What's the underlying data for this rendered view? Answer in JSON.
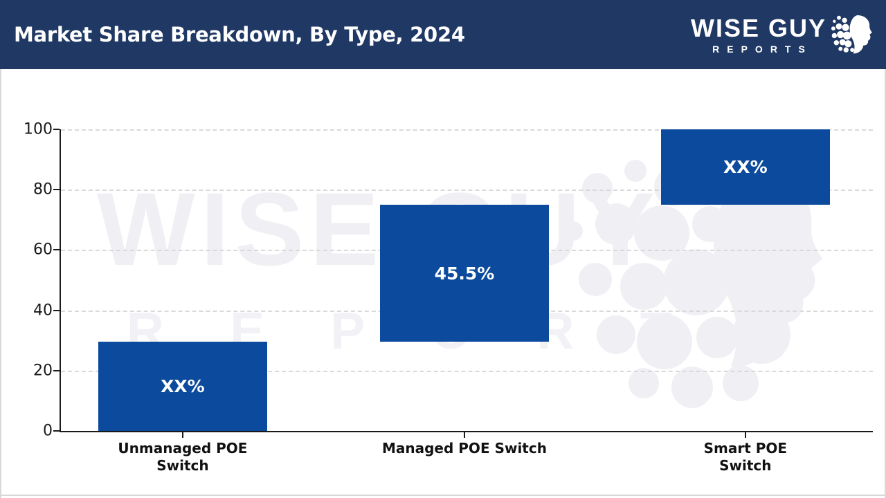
{
  "header": {
    "title": "Market Share Breakdown, By Type, 2024",
    "bg_color": "#1f3864",
    "text_color": "#ffffff"
  },
  "logo": {
    "wordmark": "WISE GUY",
    "subtext": "REPORTS"
  },
  "watermark": {
    "wordmark": "WISE GUY",
    "subtext": "REPORTS"
  },
  "chart_data": {
    "type": "bar",
    "variant": "floating segment bars (waterfall-style market share breakdown)",
    "title": "Market Share Breakdown, By Type, 2024",
    "categories": [
      "Unmanaged POE\nSwitch",
      "Managed POE Switch",
      "Smart POE Switch"
    ],
    "series": [
      {
        "name": "Market share (%)",
        "segments": [
          {
            "category": "Unmanaged POE Switch",
            "start": 0,
            "end": 29.5,
            "label": "XX%"
          },
          {
            "category": "Managed POE Switch",
            "start": 29.5,
            "end": 75,
            "label": "45.5%"
          },
          {
            "category": "Smart POE Switch",
            "start": 75,
            "end": 100,
            "label": "XX%"
          }
        ]
      }
    ],
    "ylim": [
      0,
      100
    ],
    "yticks": [
      0,
      20,
      40,
      60,
      80,
      100
    ],
    "xlabel": "",
    "ylabel": "",
    "grid": "horizontal dashed",
    "legend": "none",
    "bar_color": "#0b4a9c",
    "bar_label_color": "#ffffff",
    "axis_color": "#1a1a1a",
    "gridline_color": "#d9d9d9"
  }
}
